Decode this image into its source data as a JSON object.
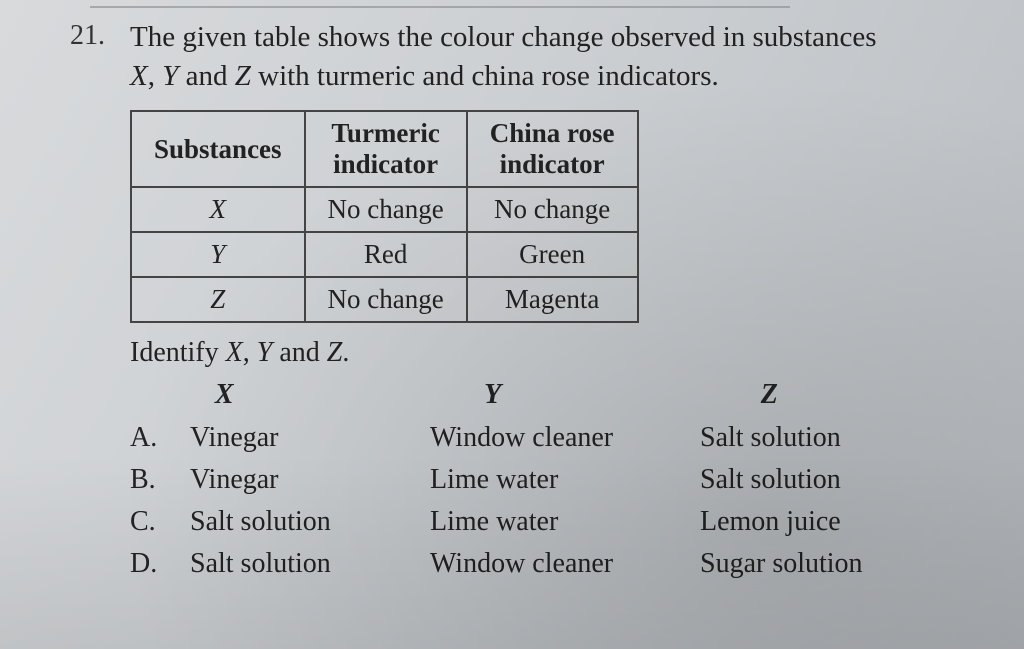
{
  "question": {
    "number": "21.",
    "text_pre": "The given table shows the colour change observed in substances ",
    "var_x": "X",
    "comma1": ", ",
    "var_y": "Y",
    "and": " and ",
    "var_z": "Z",
    "text_post": " with turmeric and china rose indicators."
  },
  "table": {
    "headers": {
      "substances": "Substances",
      "turmeric_l1": "Turmeric",
      "turmeric_l2": "indicator",
      "china_l1": "China rose",
      "china_l2": "indicator"
    },
    "rows": [
      {
        "s": "X",
        "t": "No change",
        "c": "No change"
      },
      {
        "s": "Y",
        "t": "Red",
        "c": "Green"
      },
      {
        "s": "Z",
        "t": "No change",
        "c": "Magenta"
      }
    ]
  },
  "identify": {
    "pre": "Identify ",
    "x": "X",
    "c1": ", ",
    "y": "Y",
    "and": " and ",
    "z": "Z",
    "dot": "."
  },
  "opt_headers": {
    "x": "X",
    "y": "Y",
    "z": "Z"
  },
  "options": [
    {
      "l": "A.",
      "x": "Vinegar",
      "y": "Window cleaner",
      "z": "Salt solution"
    },
    {
      "l": "B.",
      "x": "Vinegar",
      "y": "Lime water",
      "z": "Salt solution"
    },
    {
      "l": "C.",
      "x": "Salt solution",
      "y": "Lime water",
      "z": "Lemon juice"
    },
    {
      "l": "D.",
      "x": "Salt solution",
      "y": "Window cleaner",
      "z": "Sugar solution"
    }
  ],
  "style": {
    "background_start": "#d8dadc",
    "background_end": "#b8bcc0",
    "text_color": "#222222",
    "border_color": "#444444",
    "font_family": "Times New Roman"
  }
}
